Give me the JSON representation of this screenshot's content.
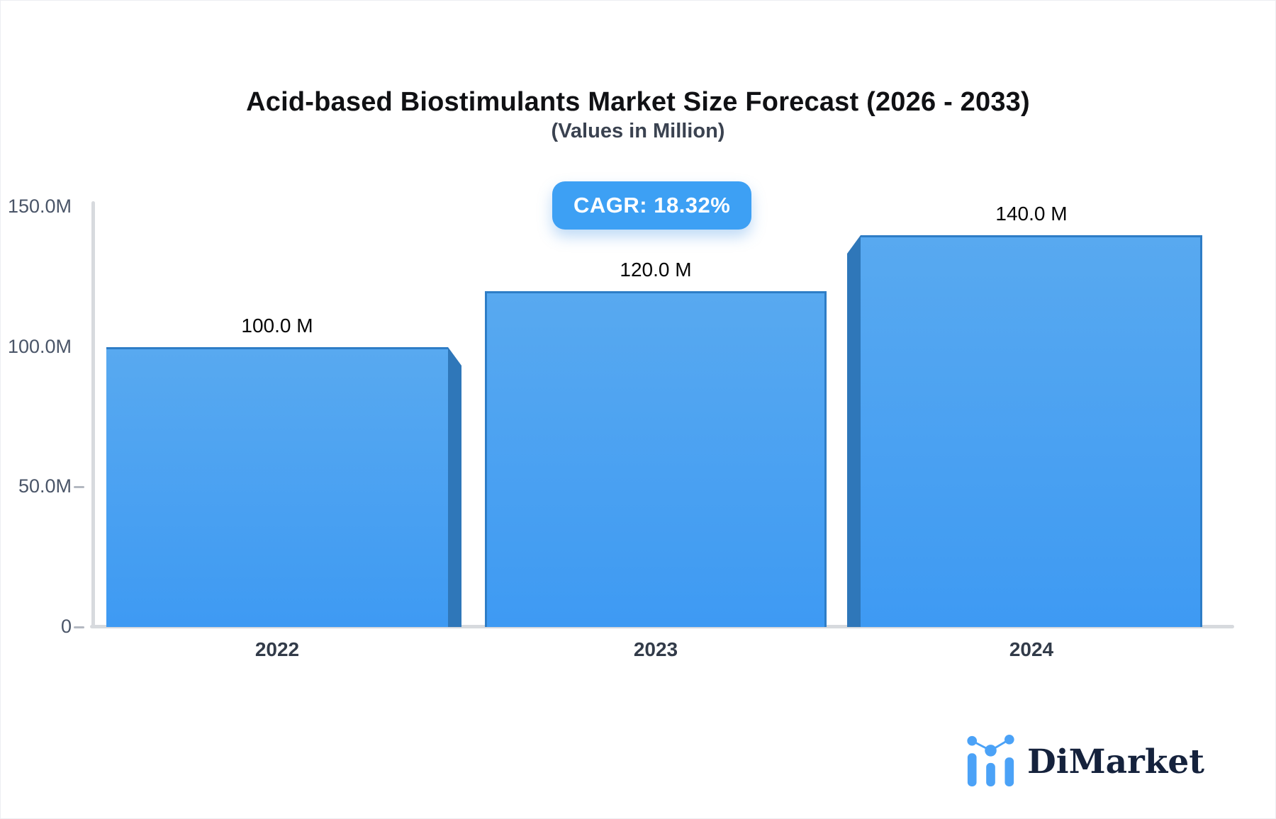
{
  "header": {
    "title": "Acid-based Biostimulants Market Size Forecast (2026 - 2033)",
    "subtitle": "(Values in Million)"
  },
  "badge": {
    "label": "CAGR: 18.32%"
  },
  "brand": {
    "name": "DiMarket",
    "icon": "mini-bar-line-chart-icon"
  },
  "colors": {
    "accent": "#3da0f4",
    "bar_gradient_top": "#58a9f0",
    "bar_gradient_bottom": "#3e9af3",
    "bar_side_face": "#2f77b9",
    "bar_edge": "#2e7dc6",
    "axis_line": "#d7dade",
    "tick_text": "#4a5568",
    "category_text": "#323b49",
    "value_text": "#060606",
    "badge_bg": "#3da0f4",
    "badge_text": "#ffffff",
    "title_text": "#101114",
    "subtitle_text": "#3a4250",
    "brand_text": "#15223c",
    "brand_icon": "#4ba2f7"
  },
  "chart_data": {
    "type": "bar",
    "title": "Acid-based Biostimulants Market Size Forecast (2026 - 2033)",
    "subtitle": "(Values in Million)",
    "unit": "Million (M)",
    "cagr_pct": 18.32,
    "categories": [
      "2022",
      "2023",
      "2024"
    ],
    "values": [
      100.0,
      120.0,
      140.0
    ],
    "value_labels": [
      "100.0 M",
      "120.0 M",
      "140.0 M"
    ],
    "ylim": [
      0,
      150
    ],
    "y_ticks": [
      {
        "label": "150.0M",
        "value": 150,
        "dash": false
      },
      {
        "label": "100.0M",
        "value": 100,
        "dash": false
      },
      {
        "label": "50.0M",
        "value": 50,
        "dash": true
      },
      {
        "label": "0",
        "value": 0,
        "dash": true
      }
    ],
    "grid": false,
    "legend": false,
    "bar_3d_sides": [
      "right",
      "none",
      "left"
    ]
  }
}
